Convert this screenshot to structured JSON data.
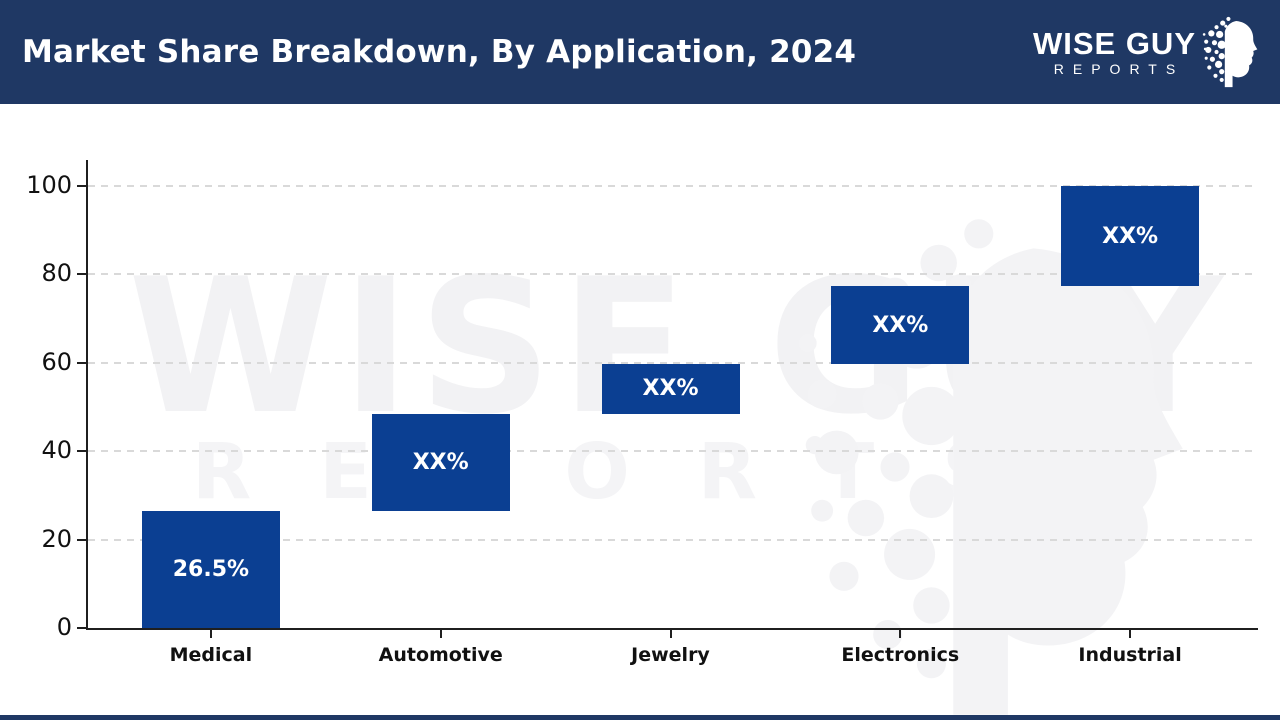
{
  "header": {
    "title": "Market Share Breakdown, By Application, 2024",
    "logo": {
      "name": "WISE GUY",
      "tagline": "REPORTS"
    }
  },
  "watermark": {
    "name": "WISE GUY",
    "tagline": "REPORTS"
  },
  "chart_data": {
    "type": "bar",
    "subtype": "waterfall",
    "title": "Market Share Breakdown, By Application, 2024",
    "categories": [
      "Medical",
      "Automotive",
      "Jewelry",
      "Electronics",
      "Industrial"
    ],
    "segments": [
      {
        "category": "Medical",
        "start": 0,
        "end": 26.5,
        "label": "26.5%"
      },
      {
        "category": "Automotive",
        "start": 26.5,
        "end": 48.5,
        "label": "XX%"
      },
      {
        "category": "Jewelry",
        "start": 48.5,
        "end": 59.8,
        "label": "XX%"
      },
      {
        "category": "Electronics",
        "start": 59.8,
        "end": 77.3,
        "label": "XX%"
      },
      {
        "category": "Industrial",
        "start": 77.3,
        "end": 100,
        "label": "XX%"
      }
    ],
    "ylim": [
      0,
      100
    ],
    "yticks": [
      0,
      20,
      40,
      60,
      80,
      100
    ],
    "grid": "horizontal-dashed",
    "legend": "none"
  },
  "colors": {
    "header_bg": "#1f3864",
    "bar": "#0b3f92",
    "bar_label": "#ffffff",
    "grid_line": "#d9d9d9",
    "axis_line": "#1f1f1f",
    "tick_label": "#111111",
    "watermark": "#f2f2f4",
    "footer_bar": "#1f3864"
  }
}
